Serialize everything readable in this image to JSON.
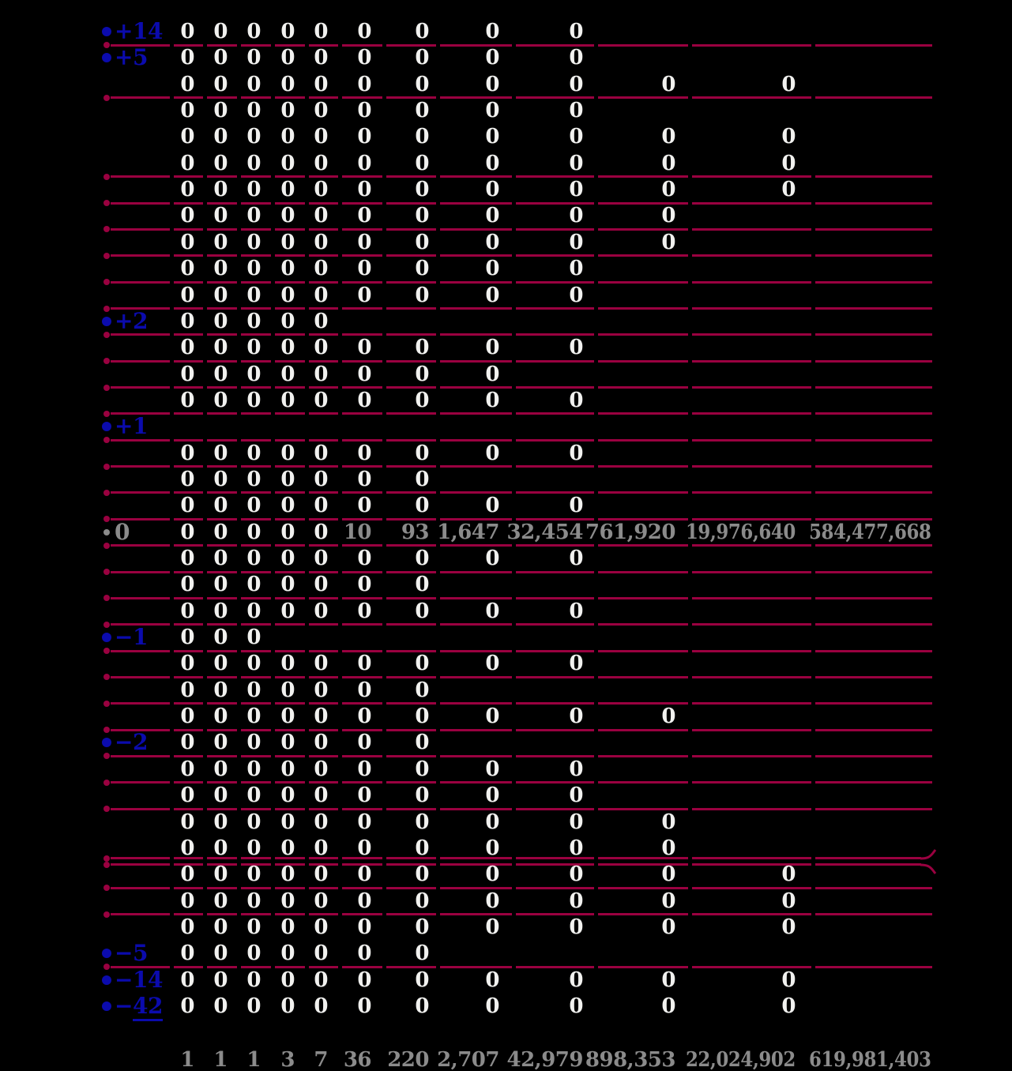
{
  "colors": {
    "background": "#000000",
    "rule_red": "#9a0140",
    "label_blue": "#0b0bad",
    "digit_white": "#f1f1ef",
    "muted_gray": "#8b8b8b"
  },
  "chart_data": {
    "type": "table",
    "title": "",
    "legend_position": "none",
    "grid": "horizontal-rules",
    "num_columns": 12,
    "rows": [
      {
        "label": "+14",
        "label_color": "blue",
        "zeros": 9,
        "lines_below": 1
      },
      {
        "label": "+5",
        "label_color": "blue",
        "zeros": 9,
        "lines_below": 0
      },
      {
        "label": "",
        "label_color": "",
        "zeros": 11,
        "lines_below": 1
      },
      {
        "label": "",
        "label_color": "",
        "zeros": 9,
        "lines_below": 0
      },
      {
        "label": "",
        "label_color": "",
        "zeros": 11,
        "lines_below": 0
      },
      {
        "label": "",
        "label_color": "",
        "zeros": 11,
        "lines_below": 1
      },
      {
        "label": "",
        "label_color": "",
        "zeros": 11,
        "lines_below": 1
      },
      {
        "label": "",
        "label_color": "",
        "zeros": 10,
        "lines_below": 1
      },
      {
        "label": "",
        "label_color": "",
        "zeros": 10,
        "lines_below": 1
      },
      {
        "label": "",
        "label_color": "",
        "zeros": 9,
        "lines_below": 1
      },
      {
        "label": "",
        "label_color": "",
        "zeros": 9,
        "lines_below": 1
      },
      {
        "label": "+2",
        "label_color": "blue",
        "zeros": 5,
        "lines_below": 1
      },
      {
        "label": "",
        "label_color": "",
        "zeros": 9,
        "lines_below": 1
      },
      {
        "label": "",
        "label_color": "",
        "zeros": 8,
        "lines_below": 1
      },
      {
        "label": "",
        "label_color": "",
        "zeros": 9,
        "lines_below": 1
      },
      {
        "label": "+1",
        "label_color": "blue",
        "zeros": 0,
        "lines_below": 1
      },
      {
        "label": "",
        "label_color": "",
        "zeros": 9,
        "lines_below": 1
      },
      {
        "label": "",
        "label_color": "",
        "zeros": 7,
        "lines_below": 1
      },
      {
        "label": "",
        "label_color": "",
        "zeros": 9,
        "lines_below": 1
      },
      {
        "label": "0",
        "label_color": "gray",
        "values": [
          "0",
          "0",
          "0",
          "0",
          "0",
          "10",
          "93",
          "1,647",
          "32,454",
          "761,920",
          "19,976,640",
          "584,477,668"
        ],
        "lines_below": 1
      },
      {
        "label": "",
        "label_color": "",
        "zeros": 9,
        "lines_below": 1
      },
      {
        "label": "",
        "label_color": "",
        "zeros": 7,
        "lines_below": 1
      },
      {
        "label": "",
        "label_color": "",
        "zeros": 9,
        "lines_below": 1
      },
      {
        "label": "−1",
        "label_color": "blue",
        "zeros": 3,
        "lines_below": 1
      },
      {
        "label": "",
        "label_color": "",
        "zeros": 9,
        "lines_below": 1
      },
      {
        "label": "",
        "label_color": "",
        "zeros": 7,
        "lines_below": 1
      },
      {
        "label": "",
        "label_color": "",
        "zeros": 10,
        "lines_below": 1
      },
      {
        "label": "−2",
        "label_color": "blue",
        "zeros": 7,
        "lines_below": 1
      },
      {
        "label": "",
        "label_color": "",
        "zeros": 9,
        "lines_below": 1
      },
      {
        "label": "",
        "label_color": "",
        "zeros": 9,
        "lines_below": 1
      },
      {
        "label": "",
        "label_color": "",
        "zeros": 10,
        "lines_below": 0
      },
      {
        "label": "",
        "label_color": "",
        "zeros": 10,
        "lines_below": 2,
        "brace": true
      },
      {
        "label": "",
        "label_color": "",
        "zeros": 11,
        "lines_below": 1
      },
      {
        "label": "",
        "label_color": "",
        "zeros": 11,
        "lines_below": 1
      },
      {
        "label": "",
        "label_color": "",
        "zeros": 11,
        "lines_below": 0
      },
      {
        "label": "−5",
        "label_color": "blue",
        "zeros": 7,
        "lines_below": 1
      },
      {
        "label": "−14",
        "label_color": "blue",
        "zeros": 11,
        "lines_below": 0
      },
      {
        "label": "−42",
        "label_color": "blue",
        "underline": true,
        "zeros": 11,
        "lines_below": 0
      }
    ],
    "totals": [
      "1",
      "1",
      "1",
      "3",
      "7",
      "36",
      "220",
      "2,707",
      "42,979",
      "898,353",
      "22,024,902",
      "619,981,403"
    ]
  }
}
